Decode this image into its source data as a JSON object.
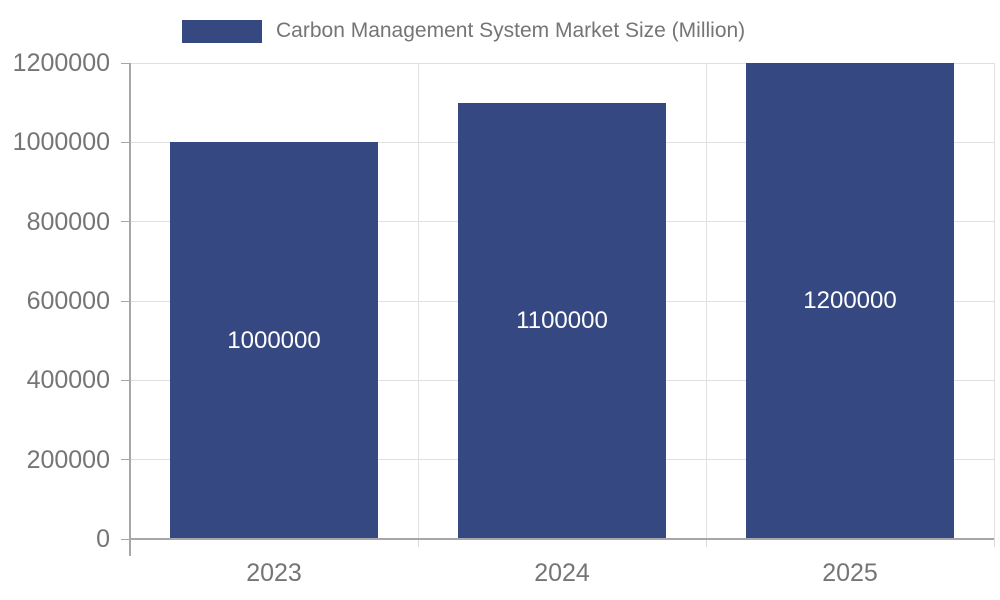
{
  "legend": {
    "label": "Carbon Management System Market Size (Million)"
  },
  "colors": {
    "bar": "#364881",
    "bar_label_text": "#ffffff",
    "tick_text": "#757575",
    "legend_text": "#757575",
    "gridline": "#e0e0e0",
    "axis_line": "#a7a7a7",
    "boundary_tick": "#d9d9d9",
    "background": "#ffffff"
  },
  "chart_data": {
    "type": "bar",
    "title": "Carbon Management System Market Size (Million)",
    "categories": [
      "2023",
      "2024",
      "2025"
    ],
    "values": [
      1000000,
      1100000,
      1200000
    ],
    "data_labels": [
      "1000000",
      "1100000",
      "1200000"
    ],
    "xlabel": "",
    "ylabel": "",
    "ylim": [
      0,
      1200000
    ],
    "yticks": [
      0,
      200000,
      400000,
      600000,
      800000,
      1000000,
      1200000
    ],
    "ytick_labels": [
      "0",
      "200000",
      "400000",
      "600000",
      "800000",
      "1000000",
      "1200000"
    ],
    "grid": true,
    "legend_position": "top",
    "bar_label_position": "inside-middle"
  }
}
